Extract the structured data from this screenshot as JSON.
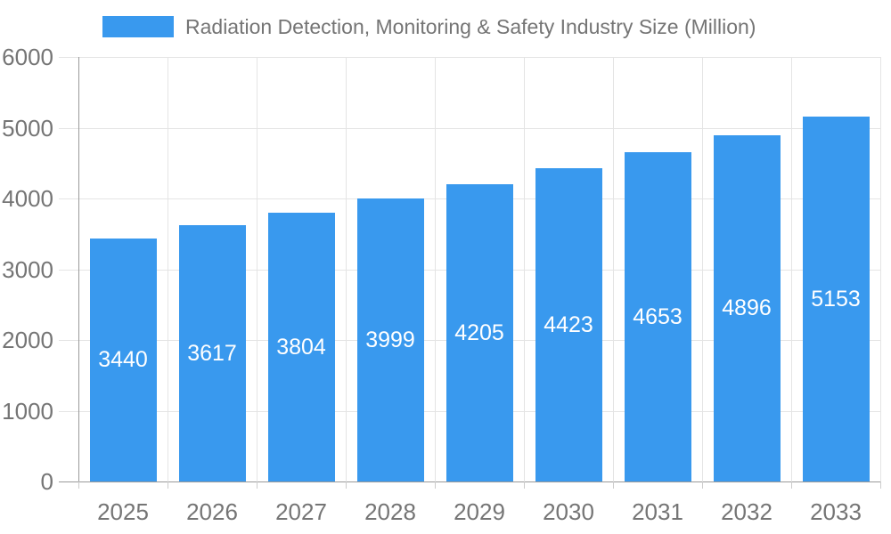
{
  "legend": {
    "label": "Radiation Detection, Monitoring & Safety Industry Size (Million)",
    "swatch_color": "#3999ee"
  },
  "chart_data": {
    "type": "bar",
    "title": "Radiation Detection, Monitoring & Safety Industry Size (Million)",
    "categories": [
      "2025",
      "2026",
      "2027",
      "2028",
      "2029",
      "2030",
      "2031",
      "2032",
      "2033"
    ],
    "values": [
      3440,
      3617,
      3804,
      3999,
      4205,
      4423,
      4653,
      4896,
      5153
    ],
    "series": [
      {
        "name": "Radiation Detection, Monitoring & Safety Industry Size (Million)",
        "values": [
          3440,
          3617,
          3804,
          3999,
          4205,
          4423,
          4653,
          4896,
          5153
        ]
      }
    ],
    "xlabel": "",
    "ylabel": "",
    "ylim": [
      0,
      6000
    ],
    "yticks": [
      0,
      1000,
      2000,
      3000,
      4000,
      5000,
      6000
    ],
    "grid": true,
    "legend_position": "top-left",
    "value_labels": "inside-center",
    "colors": {
      "bar": "#3999ee",
      "value_label": "#ffffff",
      "axis_line": "#9a9a9a",
      "gridline": "#e4e4e4",
      "tick": "#cccccc",
      "axis_text": "#757575",
      "background": "#ffffff"
    }
  }
}
